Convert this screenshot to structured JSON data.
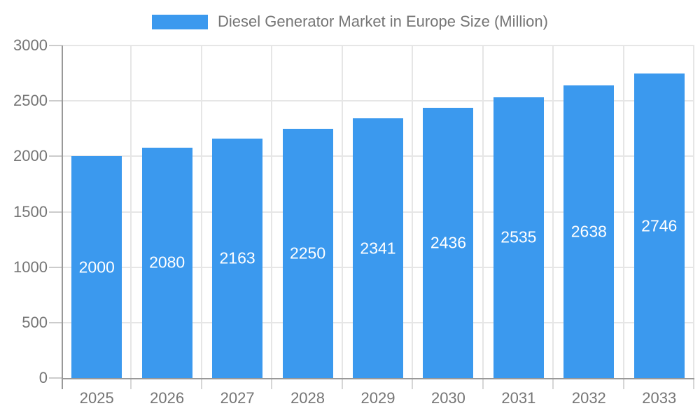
{
  "chart_data": {
    "type": "bar",
    "title": "Diesel Generator Market in Europe Size (Million)",
    "categories": [
      "2025",
      "2026",
      "2027",
      "2028",
      "2029",
      "2030",
      "2031",
      "2032",
      "2033"
    ],
    "values": [
      2000,
      2080,
      2163,
      2250,
      2341,
      2436,
      2535,
      2638,
      2746
    ],
    "xlabel": "",
    "ylabel": "",
    "ylim": [
      0,
      3000
    ],
    "ytick_interval": 500,
    "yticks": [
      0,
      500,
      1000,
      1500,
      2000,
      2500,
      3000
    ],
    "grid": true,
    "legend_position": "top",
    "bar_labels_inside": true,
    "colors": {
      "bar": "#3B99EE",
      "grid": "#e6e6e6",
      "axis": "#999999",
      "tick": "#cccccc",
      "axis_text": "#757575",
      "bar_label_text": "#ffffff",
      "background": "#ffffff"
    }
  }
}
